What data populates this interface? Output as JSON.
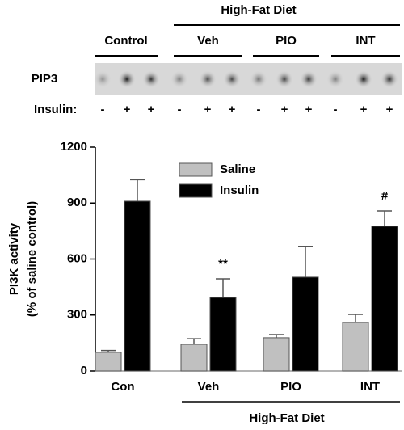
{
  "blot": {
    "header": "High-Fat Diet",
    "groups": [
      "Control",
      "Veh",
      "PIO",
      "INT"
    ],
    "row_label": "PIP3",
    "insulin_label": "Insulin:",
    "insulin_signs": [
      "-",
      "+",
      "+",
      "-",
      "+",
      "+",
      "-",
      "+",
      "+",
      "-",
      "+",
      "+"
    ]
  },
  "chart_data": {
    "type": "bar",
    "ylabel": [
      "PI3K activity",
      "(% of saline control)"
    ],
    "categories": [
      "Con",
      "Veh",
      "PIO",
      "INT"
    ],
    "series": [
      {
        "name": "Saline",
        "color": "#c0c0c0",
        "values": [
          100,
          143,
          178,
          260
        ],
        "errors": [
          10,
          30,
          17,
          43
        ]
      },
      {
        "name": "Insulin",
        "color": "#000000",
        "values": [
          910,
          394,
          503,
          776
        ],
        "errors": [
          115,
          100,
          165,
          82
        ]
      }
    ],
    "ylim": [
      0,
      1200
    ],
    "yticks": [
      0,
      300,
      600,
      900,
      1200
    ],
    "group_label": "High-Fat Diet",
    "annotations": [
      {
        "text": "**",
        "category": "Veh",
        "series": "Insulin"
      },
      {
        "text": "#",
        "category": "INT",
        "series": "Insulin"
      }
    ],
    "legend": "upper left"
  }
}
